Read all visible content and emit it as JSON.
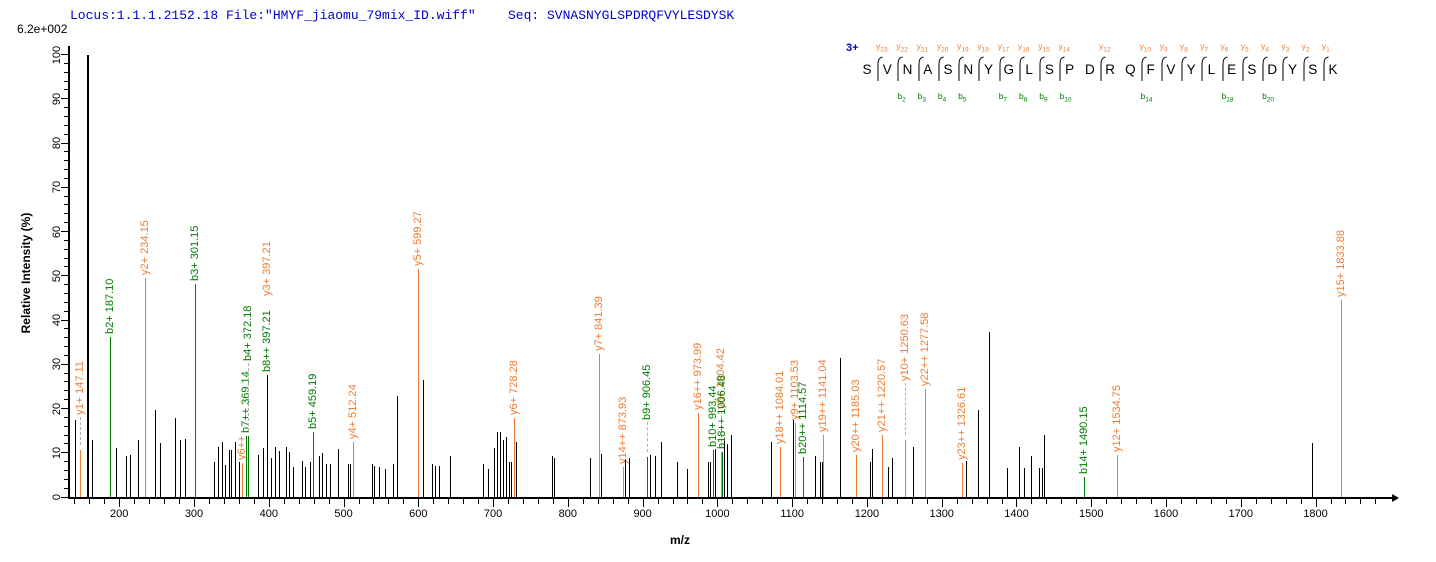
{
  "header": {
    "locus_file": "Locus:1.1.1.2152.18 File:\"HMYF_jiaomu_79mix_ID.wiff\"",
    "seq": "Seq: SVNASNYGLSPDRQFVYLESDYSK",
    "max_intensity": "6.2e+002"
  },
  "axes": {
    "ylabel": "Relative  Intensity (%)",
    "xlabel": "m/z"
  },
  "colors": {
    "y_ion": "#ee7d33",
    "b_ion": "#007b00",
    "peak": "#000000",
    "header_blue": "#0000cc",
    "leader_gray": "#b0b0b0"
  },
  "peptide_panel": {
    "charge": "3+",
    "residues": [
      "S",
      "V",
      "N",
      "A",
      "S",
      "N",
      "Y",
      "G",
      "L",
      "S",
      "P",
      "D",
      "R",
      "Q",
      "F",
      "V",
      "Y",
      "L",
      "E",
      "S",
      "D",
      "Y",
      "S",
      "K"
    ],
    "cleavages": [
      {
        "after": 1,
        "y": "y23"
      },
      {
        "after": 2,
        "y": "y22",
        "b": "b2"
      },
      {
        "after": 3,
        "y": "y21",
        "b": "b3"
      },
      {
        "after": 4,
        "y": "y20",
        "b": "b4"
      },
      {
        "after": 5,
        "y": "y19",
        "b": "b5"
      },
      {
        "after": 6,
        "y": "y18"
      },
      {
        "after": 7,
        "y": "y17",
        "b": "b7"
      },
      {
        "after": 8,
        "y": "y16",
        "b": "b8"
      },
      {
        "after": 9,
        "y": "y15",
        "b": "b9"
      },
      {
        "after": 10,
        "y": "y14",
        "b": "b10"
      },
      {
        "after": 12,
        "y": "y12"
      },
      {
        "after": 14,
        "y": "y10",
        "b": "b14"
      },
      {
        "after": 15,
        "y": "y9"
      },
      {
        "after": 16,
        "y": "y8"
      },
      {
        "after": 17,
        "y": "y7"
      },
      {
        "after": 18,
        "y": "y6",
        "b": "b18"
      },
      {
        "after": 19,
        "y": "y5"
      },
      {
        "after": 20,
        "y": "y4",
        "b": "b20"
      },
      {
        "after": 21,
        "y": "y3"
      },
      {
        "after": 22,
        "y": "y2"
      },
      {
        "after": 23,
        "y": "y1"
      }
    ]
  },
  "chart_data": {
    "type": "bar",
    "subtype": "ms2_spectrum",
    "xlabel": "m/z",
    "ylabel": "Relative  Intensity (%)",
    "xlim": [
      132.8,
      1910
    ],
    "ylim": [
      0,
      100
    ],
    "xticks": [
      200,
      300,
      400,
      500,
      600,
      700,
      800,
      900,
      1000,
      1100,
      1200,
      1300,
      1400,
      1500,
      1600,
      1700,
      1800
    ],
    "yticks": [
      0,
      10,
      20,
      30,
      40,
      50,
      60,
      70,
      80,
      90,
      100
    ],
    "x_minor_step": 20,
    "y_minor_step": 2,
    "peaks": [
      {
        "mz": 147.11,
        "i": 10.6,
        "ion": "y",
        "label": "y1+ 147.11",
        "lift": 32,
        "dash": true
      },
      {
        "mz": 187.1,
        "i": 36.1,
        "ion": "b",
        "label": "b2+ 187.10"
      },
      {
        "mz": 234.15,
        "i": 49.4,
        "ion": "y",
        "label": "y2+ 234.15"
      },
      {
        "mz": 301.15,
        "i": 48.2,
        "ion": "b",
        "label": "b3+ 301.15"
      },
      {
        "mz": 364.64,
        "i": 7.7,
        "ion": "y",
        "label": "y6++"
      },
      {
        "mz": 369.14,
        "i": 13.8,
        "ion": "b",
        "label": "b7++ 369.14"
      },
      {
        "mz": 372.18,
        "i": 13.8,
        "ion": "b",
        "label": "b4+ 372.18",
        "lift": 72,
        "dash": true
      },
      {
        "mz": 397.21,
        "i": 27.5,
        "ion": "none",
        "label": "b8++ 397.21",
        "labelion": "b"
      },
      {
        "mz": 397.21,
        "i": 27.5,
        "ion": "none",
        "label": "y3+ 397.21",
        "labelion": "y",
        "lift": 76,
        "nopeak": true
      },
      {
        "mz": 459.19,
        "i": 14.7,
        "ion": "b",
        "label": "b5+ 459.19"
      },
      {
        "mz": 512.24,
        "i": 12.5,
        "ion": "y",
        "label": "y4+ 512.24"
      },
      {
        "mz": 599.27,
        "i": 51.6,
        "ion": "y",
        "label": "y5+ 599.27"
      },
      {
        "mz": 728.28,
        "i": 17.8,
        "ion": "y",
        "label": "y6+ 728.28"
      },
      {
        "mz": 841.39,
        "i": 32.4,
        "ion": "y",
        "label": "y7+ 841.39"
      },
      {
        "mz": 873.93,
        "i": 6.8,
        "ion": "y",
        "label": "y14++ 873.93"
      },
      {
        "mz": 906.45,
        "i": 9.1,
        "ion": "b",
        "label": "b9+ 906.45",
        "lift": 34,
        "dash": true
      },
      {
        "mz": 973.99,
        "i": 18.9,
        "ion": "y",
        "label": "y16++ 973.99"
      },
      {
        "mz": 993.44,
        "i": 10.6,
        "ion": "b",
        "label": "b10+ 993.44"
      },
      {
        "mz": 1004.42,
        "i": 10.2,
        "ion": "y",
        "label": "y8+ 1004.42",
        "lift": 40,
        "dash": true
      },
      {
        "mz": 1006.48,
        "i": 10.2,
        "ion": "b",
        "label": "b18++ 1006.48"
      },
      {
        "mz": 1084.01,
        "i": 11.4,
        "ion": "y",
        "label": "y18++ 1084.01"
      },
      {
        "mz": 1103.53,
        "i": 16.7,
        "ion": "y",
        "label": "y9+ 1103.53"
      },
      {
        "mz": 1114.57,
        "i": 9.1,
        "ion": "b",
        "label": "b20++ 1114.57"
      },
      {
        "mz": 1141.04,
        "i": 14.0,
        "ion": "y",
        "label": "y19++ 1141.04"
      },
      {
        "mz": 1185.03,
        "i": 9.5,
        "ion": "y",
        "label": "y20++ 1185.03"
      },
      {
        "mz": 1220.57,
        "i": 14.0,
        "ion": "y",
        "label": "y21++ 1220.57"
      },
      {
        "mz": 1250.63,
        "i": 12.9,
        "ion": "y",
        "label": "y10+ 1250.63",
        "lift": 56,
        "dash": true
      },
      {
        "mz": 1277.58,
        "i": 24.5,
        "ion": "y",
        "label": "y22++ 1277.58"
      },
      {
        "mz": 1326.61,
        "i": 7.6,
        "ion": "y",
        "label": "y23++ 1326.61"
      },
      {
        "mz": 1490.15,
        "i": 4.6,
        "ion": "b",
        "label": "b14+ 1490.15"
      },
      {
        "mz": 1534.75,
        "i": 9.5,
        "ion": "y",
        "label": "y12+ 1534.75"
      },
      {
        "mz": 1833.88,
        "i": 44.5,
        "ion": "y",
        "label": "y15+ 1833.88"
      },
      {
        "mz": 141,
        "i": 17.4
      },
      {
        "mz": 157.5,
        "i": 100,
        "w": 2
      },
      {
        "mz": 164,
        "i": 12.9
      },
      {
        "mz": 196,
        "i": 11
      },
      {
        "mz": 208.6,
        "i": 9.3
      },
      {
        "mz": 214.8,
        "i": 9.6
      },
      {
        "mz": 225,
        "i": 12.9
      },
      {
        "mz": 248.3,
        "i": 19.6
      },
      {
        "mz": 254.2,
        "i": 12.3
      },
      {
        "mz": 274,
        "i": 17.8
      },
      {
        "mz": 280.8,
        "i": 12.9
      },
      {
        "mz": 287.5,
        "i": 13.2
      },
      {
        "mz": 326.4,
        "i": 7.9
      },
      {
        "mz": 332,
        "i": 11.3
      },
      {
        "mz": 338,
        "i": 12.4
      },
      {
        "mz": 342,
        "i": 7.2
      },
      {
        "mz": 347,
        "i": 10.6
      },
      {
        "mz": 350,
        "i": 10.6
      },
      {
        "mz": 355,
        "i": 12.5
      },
      {
        "mz": 360.6,
        "i": 7.8
      },
      {
        "mz": 385,
        "i": 9.6
      },
      {
        "mz": 392.5,
        "i": 11
      },
      {
        "mz": 403,
        "i": 8.9
      },
      {
        "mz": 408,
        "i": 11.2
      },
      {
        "mz": 414,
        "i": 10.3
      },
      {
        "mz": 422.6,
        "i": 11.2
      },
      {
        "mz": 427,
        "i": 10.1
      },
      {
        "mz": 433,
        "i": 6.8
      },
      {
        "mz": 444,
        "i": 8.2
      },
      {
        "mz": 448.6,
        "i": 6.8
      },
      {
        "mz": 455,
        "i": 8
      },
      {
        "mz": 467.3,
        "i": 9.3
      },
      {
        "mz": 471,
        "i": 10
      },
      {
        "mz": 476.6,
        "i": 7.5
      },
      {
        "mz": 482,
        "i": 7.5
      },
      {
        "mz": 492.3,
        "i": 10.9
      },
      {
        "mz": 506,
        "i": 7.5
      },
      {
        "mz": 509,
        "i": 7.5
      },
      {
        "mz": 538,
        "i": 7.5
      },
      {
        "mz": 541,
        "i": 7
      },
      {
        "mz": 547,
        "i": 6.8
      },
      {
        "mz": 556,
        "i": 6.4
      },
      {
        "mz": 565.6,
        "i": 7.5
      },
      {
        "mz": 571,
        "i": 22.8
      },
      {
        "mz": 606.5,
        "i": 26.4
      },
      {
        "mz": 618.6,
        "i": 7.5
      },
      {
        "mz": 622,
        "i": 7
      },
      {
        "mz": 627,
        "i": 7
      },
      {
        "mz": 642,
        "i": 9.3
      },
      {
        "mz": 686.4,
        "i": 7.4
      },
      {
        "mz": 693.5,
        "i": 6.4
      },
      {
        "mz": 701,
        "i": 11
      },
      {
        "mz": 704.6,
        "i": 14.6
      },
      {
        "mz": 708.6,
        "i": 14.7
      },
      {
        "mz": 712.6,
        "i": 12.8
      },
      {
        "mz": 716.7,
        "i": 13.5
      },
      {
        "mz": 721,
        "i": 8
      },
      {
        "mz": 724,
        "i": 8
      },
      {
        "mz": 730,
        "i": 12.4
      },
      {
        "mz": 779,
        "i": 9.3
      },
      {
        "mz": 781.5,
        "i": 8.9
      },
      {
        "mz": 829,
        "i": 8.9
      },
      {
        "mz": 844.5,
        "i": 9.7
      },
      {
        "mz": 877,
        "i": 8.6
      },
      {
        "mz": 882,
        "i": 8.9
      },
      {
        "mz": 910,
        "i": 9.4
      },
      {
        "mz": 917,
        "i": 9.3
      },
      {
        "mz": 925,
        "i": 12.4
      },
      {
        "mz": 946,
        "i": 7.8
      },
      {
        "mz": 960,
        "i": 6.3
      },
      {
        "mz": 988,
        "i": 7.8
      },
      {
        "mz": 990.5,
        "i": 7.8
      },
      {
        "mz": 997,
        "i": 10.8
      },
      {
        "mz": 1009,
        "i": 12.7
      },
      {
        "mz": 1013,
        "i": 12
      },
      {
        "mz": 1018,
        "i": 14
      },
      {
        "mz": 1072,
        "i": 12.4
      },
      {
        "mz": 1101,
        "i": 17.4
      },
      {
        "mz": 1131,
        "i": 9.3
      },
      {
        "mz": 1137,
        "i": 8
      },
      {
        "mz": 1139.5,
        "i": 8
      },
      {
        "mz": 1164,
        "i": 31.4
      },
      {
        "mz": 1204,
        "i": 7.8
      },
      {
        "mz": 1207,
        "i": 10.8
      },
      {
        "mz": 1228,
        "i": 6.8
      },
      {
        "mz": 1234,
        "i": 8.9
      },
      {
        "mz": 1261,
        "i": 11.2
      },
      {
        "mz": 1333,
        "i": 8.2
      },
      {
        "mz": 1349,
        "i": 19.6
      },
      {
        "mz": 1363,
        "i": 37.3
      },
      {
        "mz": 1387,
        "i": 6.6
      },
      {
        "mz": 1403,
        "i": 11.2
      },
      {
        "mz": 1410,
        "i": 6.6
      },
      {
        "mz": 1419,
        "i": 9.3
      },
      {
        "mz": 1430,
        "i": 6.6
      },
      {
        "mz": 1433.5,
        "i": 6.6
      },
      {
        "mz": 1437,
        "i": 14
      },
      {
        "mz": 1795.5,
        "i": 12.3
      }
    ]
  }
}
